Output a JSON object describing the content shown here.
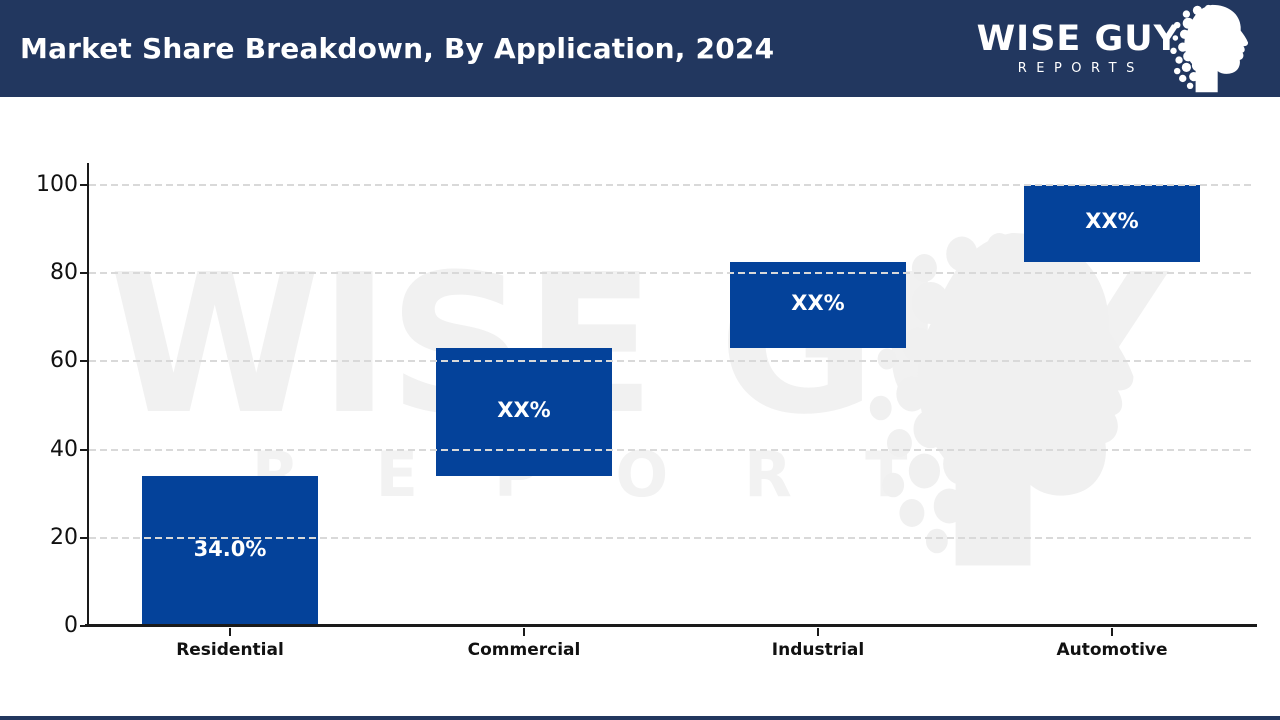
{
  "header": {
    "title": "Market Share Breakdown, By Application, 2024"
  },
  "logo": {
    "name": "WISE GUY",
    "reports": "REPORTS"
  },
  "watermark": {
    "line1": "WISE GUY",
    "line2": "REPORTS"
  },
  "colors": {
    "header_bg": "#22375f",
    "bar": "#04429a",
    "grid": "#d9d9d9",
    "axis": "#1a1a1a",
    "bar_label": "#ffffff",
    "watermark": "#f1f1f1"
  },
  "chart_data": {
    "type": "bar",
    "subtype": "waterfall-stacked-breakdown",
    "title": "Market Share Breakdown, By Application, 2024",
    "categories": [
      "Residential",
      "Commercial",
      "Industrial",
      "Automotive"
    ],
    "segments": [
      {
        "category": "Residential",
        "from": 0,
        "to": 34,
        "value": 34.0,
        "label": "34.0%"
      },
      {
        "category": "Commercial",
        "from": 34,
        "to": 63,
        "value": 29.0,
        "label": "XX%"
      },
      {
        "category": "Industrial",
        "from": 63,
        "to": 82.5,
        "value": 19.5,
        "label": "XX%"
      },
      {
        "category": "Automotive",
        "from": 82.5,
        "to": 100,
        "value": 17.5,
        "label": "XX%"
      }
    ],
    "xlabel": "",
    "ylabel": "",
    "yticks": [
      0,
      20,
      40,
      60,
      80,
      100
    ],
    "ylim": [
      0,
      105
    ],
    "grid": "horizontal-dashed",
    "legend": "none"
  }
}
